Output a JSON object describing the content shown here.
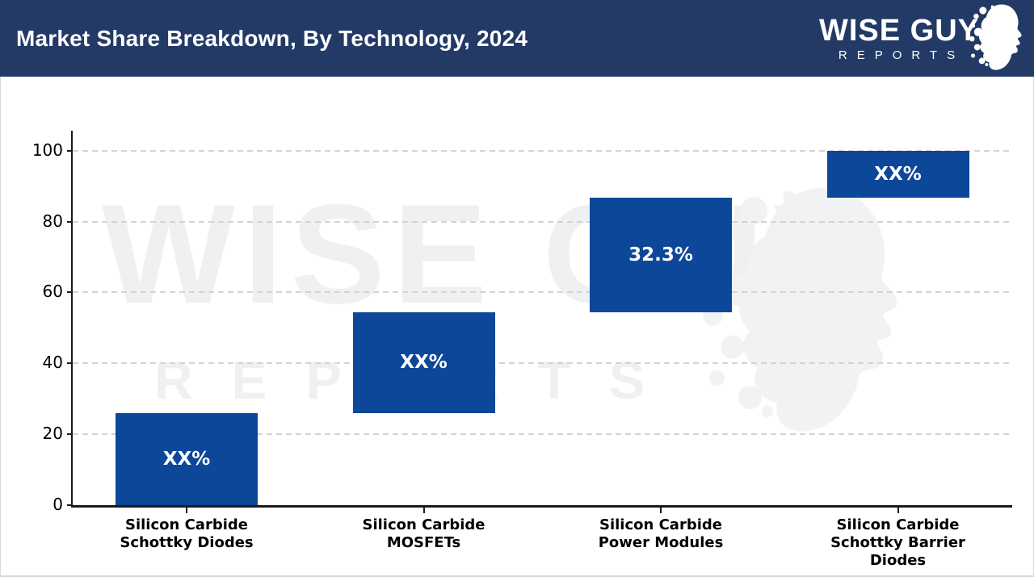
{
  "header": {
    "title": "Market Share Breakdown, By Technology, 2024",
    "bg_color": "#233a66",
    "logo": {
      "name": "WISE GUY",
      "sub": "REPORTS"
    }
  },
  "watermark": {
    "name": "WISE GUY",
    "sub": "REPORTS"
  },
  "chart_data": {
    "type": "bar",
    "subtype": "waterfall",
    "title": "Market Share Breakdown, By Technology, 2024",
    "categories": [
      "Silicon Carbide\nSchottky Diodes",
      "Silicon Carbide\nMOSFETs",
      "Silicon Carbide\nPower Modules",
      "Silicon Carbide\nSchottky Barrier\nDiodes"
    ],
    "segments": [
      {
        "start": 0,
        "end": 26.0,
        "value_label": "XX%"
      },
      {
        "start": 26.0,
        "end": 54.4,
        "value_label": "XX%"
      },
      {
        "start": 54.4,
        "end": 86.7,
        "value_label": "32.3%"
      },
      {
        "start": 86.7,
        "end": 100.0,
        "value_label": "XX%"
      }
    ],
    "xlabel": "",
    "ylabel": "",
    "yticks": [
      0,
      20,
      40,
      60,
      80,
      100
    ],
    "ylim": [
      0,
      105
    ],
    "grid": "horizontal-dashed",
    "legend": null,
    "bar_color": "#0d4799",
    "bar_label_color": "#ffffff",
    "gridline_color": "#d3d3d3",
    "axis_color": "#1a1a1a"
  }
}
